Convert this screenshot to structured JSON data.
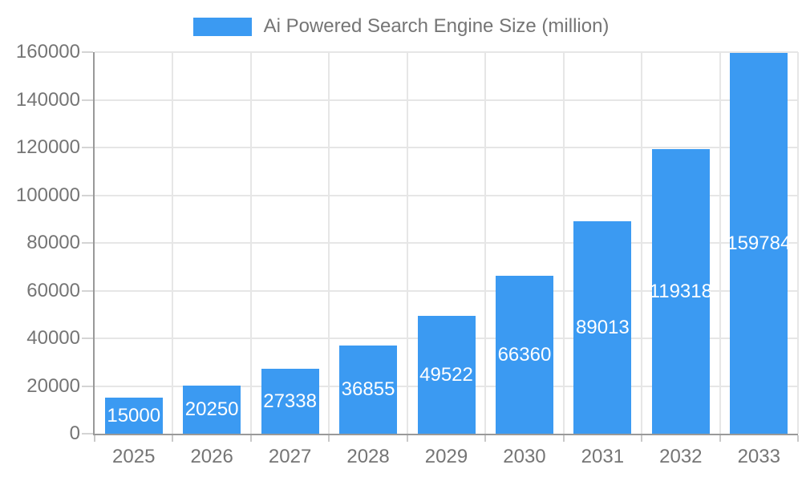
{
  "chart_data": {
    "type": "bar",
    "title": "Ai Powered Search Engine Size (million)",
    "legend_label": "Ai Powered Search Engine Size (million)",
    "legend_position": "top",
    "categories": [
      "2025",
      "2026",
      "2027",
      "2028",
      "2029",
      "2030",
      "2031",
      "2032",
      "2033"
    ],
    "series": [
      {
        "name": "Ai Powered Search Engine Size (million)",
        "values": [
          15000,
          20250,
          27338,
          36855,
          49522,
          66360,
          89013,
          119318,
          159784
        ]
      }
    ],
    "value_labels": [
      "15000",
      "20250",
      "27338",
      "36855",
      "49522",
      "66360",
      "89013",
      "119318",
      "159784"
    ],
    "xlabel": "",
    "ylabel": "",
    "ylim": [
      0,
      160000
    ],
    "y_tick_step": 20000,
    "y_tick_labels": [
      "0",
      "20000",
      "40000",
      "60000",
      "80000",
      "100000",
      "120000",
      "140000",
      "160000"
    ],
    "grid": true,
    "colors": {
      "bar": "#3b9af2",
      "value_label": "#ffffff",
      "axis_text": "#757575",
      "axis_line": "#999999",
      "gridline": "#e6e6e6",
      "tick": "#c9c9c9",
      "background": "#ffffff"
    }
  }
}
